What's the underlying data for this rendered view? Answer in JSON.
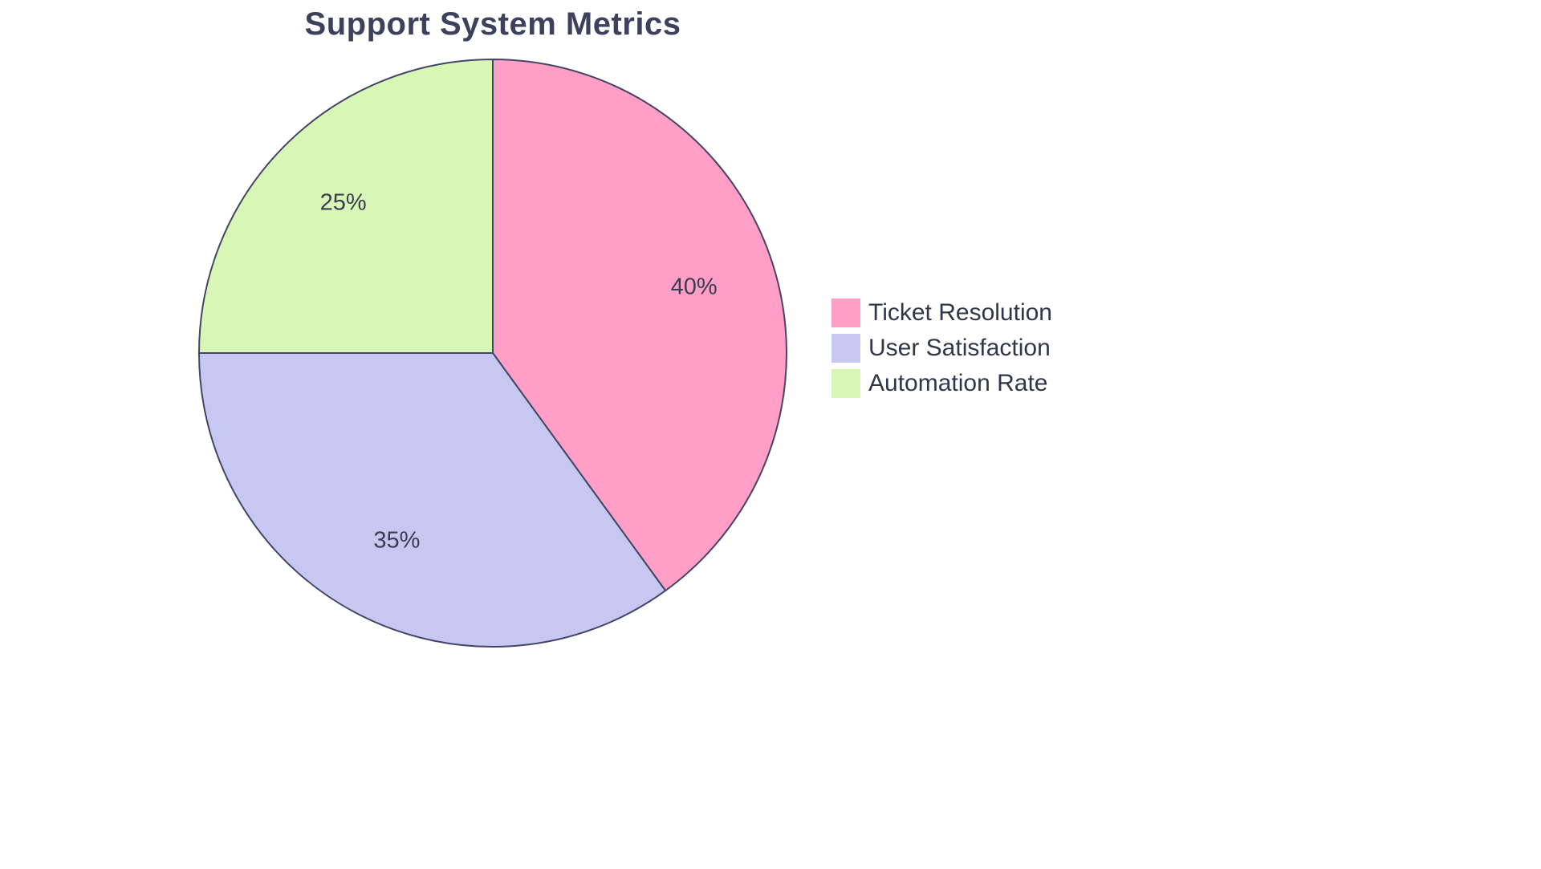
{
  "page": {
    "background_color": "#ffffff"
  },
  "chart_data": {
    "type": "pie",
    "title": "Support System Metrics",
    "labels": [
      "Ticket Resolution",
      "User Satisfaction",
      "Automation Rate"
    ],
    "values": [
      40,
      35,
      25
    ],
    "slice_labels": [
      "40%",
      "35%",
      "25%"
    ],
    "colors": [
      "#FF9EC7",
      "#C7C8F2",
      "#D8F6B5"
    ],
    "stroke_color": "#434566",
    "text_color": "#3A3D52",
    "start_angle_deg": 0,
    "direction": "clockwise",
    "legend": {
      "position": "right",
      "entries": [
        "Ticket Resolution",
        "User Satisfaction",
        "Automation Rate"
      ]
    }
  }
}
